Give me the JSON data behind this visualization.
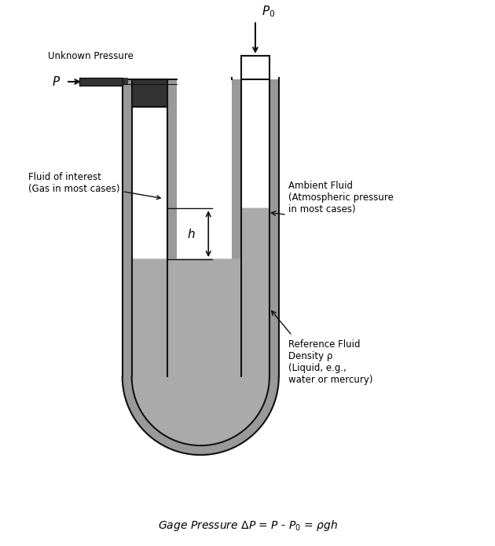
{
  "title": "Gage Pressure ΔP = P - P₀ = ρgh",
  "unknown_pressure_label": "Unknown Pressure",
  "fluid_of_interest_label": "Fluid of interest\n(Gas in most cases)",
  "ambient_fluid_label": "Ambient Fluid\n(Atmospheric pressure\nin most cases)",
  "reference_fluid_label": "Reference Fluid\nDensity ρ\n(Liquid, e.g.,\nwater or mercury)",
  "h_label": "h",
  "bg_color": "#ffffff",
  "tube_wall_color": "#999999",
  "fluid_color": "#aaaaaa",
  "white": "#ffffff",
  "dark": "#222222",
  "black": "#111111"
}
